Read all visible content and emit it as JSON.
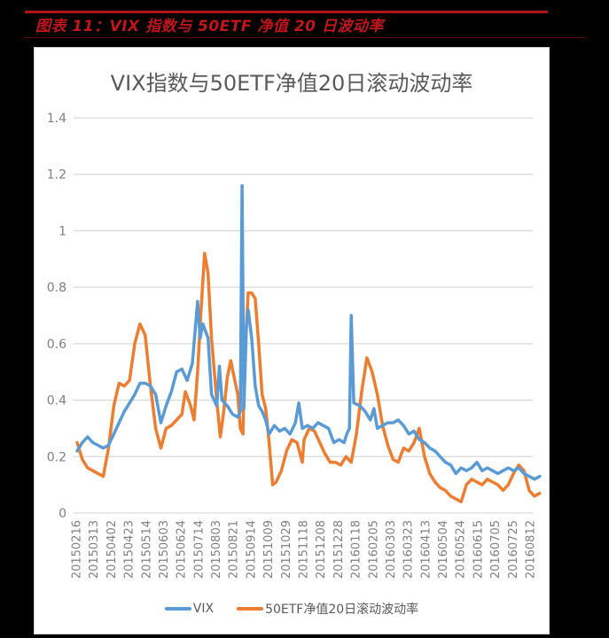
{
  "figure": {
    "caption": "图表 11：VIX 指数与 50ETF 净值 20 日波动率"
  },
  "chart_data": {
    "type": "line",
    "title": "VIX指数与50ETF净值20日滚动波动率",
    "xlabel": "",
    "ylabel": "",
    "ylim": [
      0,
      1.4
    ],
    "yticks": [
      "0",
      "0.2",
      "0.4",
      "0.6",
      "0.8",
      "1",
      "1.2",
      "1.4"
    ],
    "grid": true,
    "legend_position": "bottom",
    "x_tick_labels": [
      "20150216",
      "20150313",
      "20150402",
      "20150423",
      "20150514",
      "20150603",
      "20150624",
      "20150714",
      "20150803",
      "20150821",
      "20150914",
      "20151009",
      "20151029",
      "20151118",
      "20151208",
      "20151228",
      "20160118",
      "20160205",
      "20160303",
      "20160323",
      "20160413",
      "20160504",
      "20160524",
      "20160615",
      "20160705",
      "20160725",
      "20160812"
    ],
    "series": [
      {
        "name": "VIX",
        "color": "#5b9bd5",
        "points": [
          [
            0,
            0.22
          ],
          [
            0.3,
            0.25
          ],
          [
            0.6,
            0.27
          ],
          [
            0.9,
            0.25
          ],
          [
            1.2,
            0.24
          ],
          [
            1.5,
            0.23
          ],
          [
            1.8,
            0.24
          ],
          [
            2.1,
            0.28
          ],
          [
            2.4,
            0.32
          ],
          [
            2.7,
            0.36
          ],
          [
            3.0,
            0.39
          ],
          [
            3.3,
            0.42
          ],
          [
            3.6,
            0.46
          ],
          [
            3.9,
            0.46
          ],
          [
            4.2,
            0.45
          ],
          [
            4.5,
            0.42
          ],
          [
            4.8,
            0.32
          ],
          [
            5.1,
            0.38
          ],
          [
            5.4,
            0.43
          ],
          [
            5.7,
            0.5
          ],
          [
            6.0,
            0.51
          ],
          [
            6.3,
            0.47
          ],
          [
            6.6,
            0.53
          ],
          [
            6.9,
            0.75
          ],
          [
            7.05,
            0.62
          ],
          [
            7.2,
            0.67
          ],
          [
            7.5,
            0.62
          ],
          [
            7.7,
            0.42
          ],
          [
            8.0,
            0.38
          ],
          [
            8.15,
            0.52
          ],
          [
            8.3,
            0.4
          ],
          [
            8.6,
            0.38
          ],
          [
            8.9,
            0.35
          ],
          [
            9.2,
            0.34
          ],
          [
            9.35,
            0.36
          ],
          [
            9.45,
            1.16
          ],
          [
            9.55,
            0.37
          ],
          [
            9.7,
            0.66
          ],
          [
            9.8,
            0.72
          ],
          [
            10.0,
            0.62
          ],
          [
            10.2,
            0.45
          ],
          [
            10.4,
            0.38
          ],
          [
            10.6,
            0.36
          ],
          [
            10.8,
            0.33
          ],
          [
            11.0,
            0.28
          ],
          [
            11.3,
            0.31
          ],
          [
            11.6,
            0.29
          ],
          [
            11.9,
            0.3
          ],
          [
            12.2,
            0.28
          ],
          [
            12.5,
            0.32
          ],
          [
            12.7,
            0.39
          ],
          [
            12.9,
            0.3
          ],
          [
            13.2,
            0.31
          ],
          [
            13.5,
            0.3
          ],
          [
            13.8,
            0.32
          ],
          [
            14.1,
            0.31
          ],
          [
            14.4,
            0.3
          ],
          [
            14.7,
            0.25
          ],
          [
            15.0,
            0.26
          ],
          [
            15.3,
            0.25
          ],
          [
            15.45,
            0.28
          ],
          [
            15.6,
            0.3
          ],
          [
            15.7,
            0.7
          ],
          [
            15.85,
            0.39
          ],
          [
            16.2,
            0.38
          ],
          [
            16.5,
            0.36
          ],
          [
            16.8,
            0.33
          ],
          [
            17.0,
            0.37
          ],
          [
            17.2,
            0.3
          ],
          [
            17.5,
            0.31
          ],
          [
            17.8,
            0.32
          ],
          [
            18.1,
            0.32
          ],
          [
            18.4,
            0.33
          ],
          [
            18.7,
            0.31
          ],
          [
            19.0,
            0.28
          ],
          [
            19.3,
            0.29
          ],
          [
            19.6,
            0.26
          ],
          [
            19.9,
            0.25
          ],
          [
            20.2,
            0.23
          ],
          [
            20.5,
            0.22
          ],
          [
            20.8,
            0.2
          ],
          [
            21.1,
            0.18
          ],
          [
            21.4,
            0.17
          ],
          [
            21.7,
            0.14
          ],
          [
            22.0,
            0.16
          ],
          [
            22.3,
            0.15
          ],
          [
            22.6,
            0.16
          ],
          [
            22.9,
            0.18
          ],
          [
            23.2,
            0.15
          ],
          [
            23.5,
            0.16
          ],
          [
            23.8,
            0.15
          ],
          [
            24.1,
            0.14
          ],
          [
            24.4,
            0.15
          ],
          [
            24.7,
            0.16
          ],
          [
            25.0,
            0.15
          ],
          [
            25.3,
            0.16
          ],
          [
            25.6,
            0.14
          ],
          [
            25.9,
            0.13
          ],
          [
            26.2,
            0.12
          ],
          [
            26.5,
            0.13
          ]
        ]
      },
      {
        "name": "50ETF净值20日滚动波动率",
        "color": "#ed7d31",
        "points": [
          [
            0,
            0.25
          ],
          [
            0.3,
            0.19
          ],
          [
            0.6,
            0.16
          ],
          [
            0.9,
            0.15
          ],
          [
            1.2,
            0.14
          ],
          [
            1.5,
            0.13
          ],
          [
            1.8,
            0.23
          ],
          [
            2.1,
            0.38
          ],
          [
            2.4,
            0.46
          ],
          [
            2.7,
            0.45
          ],
          [
            3.0,
            0.47
          ],
          [
            3.3,
            0.6
          ],
          [
            3.6,
            0.67
          ],
          [
            3.9,
            0.63
          ],
          [
            4.2,
            0.45
          ],
          [
            4.5,
            0.3
          ],
          [
            4.8,
            0.23
          ],
          [
            5.1,
            0.3
          ],
          [
            5.4,
            0.31
          ],
          [
            5.7,
            0.33
          ],
          [
            6.0,
            0.35
          ],
          [
            6.2,
            0.43
          ],
          [
            6.5,
            0.38
          ],
          [
            6.7,
            0.33
          ],
          [
            6.9,
            0.5
          ],
          [
            7.1,
            0.72
          ],
          [
            7.3,
            0.92
          ],
          [
            7.5,
            0.85
          ],
          [
            7.7,
            0.62
          ],
          [
            8.0,
            0.4
          ],
          [
            8.2,
            0.27
          ],
          [
            8.4,
            0.36
          ],
          [
            8.6,
            0.48
          ],
          [
            8.8,
            0.54
          ],
          [
            9.0,
            0.48
          ],
          [
            9.2,
            0.42
          ],
          [
            9.35,
            0.3
          ],
          [
            9.5,
            0.28
          ],
          [
            9.6,
            0.55
          ],
          [
            9.8,
            0.78
          ],
          [
            10.0,
            0.78
          ],
          [
            10.2,
            0.76
          ],
          [
            10.4,
            0.6
          ],
          [
            10.6,
            0.42
          ],
          [
            10.8,
            0.37
          ],
          [
            11.0,
            0.25
          ],
          [
            11.2,
            0.1
          ],
          [
            11.4,
            0.11
          ],
          [
            11.7,
            0.15
          ],
          [
            12.0,
            0.22
          ],
          [
            12.3,
            0.26
          ],
          [
            12.6,
            0.25
          ],
          [
            12.9,
            0.18
          ],
          [
            13.0,
            0.26
          ],
          [
            13.3,
            0.3
          ],
          [
            13.6,
            0.29
          ],
          [
            13.9,
            0.25
          ],
          [
            14.2,
            0.21
          ],
          [
            14.5,
            0.18
          ],
          [
            14.8,
            0.18
          ],
          [
            15.1,
            0.17
          ],
          [
            15.4,
            0.2
          ],
          [
            15.7,
            0.18
          ],
          [
            16.0,
            0.28
          ],
          [
            16.3,
            0.43
          ],
          [
            16.6,
            0.55
          ],
          [
            16.9,
            0.5
          ],
          [
            17.2,
            0.42
          ],
          [
            17.5,
            0.31
          ],
          [
            17.8,
            0.24
          ],
          [
            18.1,
            0.19
          ],
          [
            18.4,
            0.18
          ],
          [
            18.7,
            0.23
          ],
          [
            19.0,
            0.22
          ],
          [
            19.3,
            0.25
          ],
          [
            19.6,
            0.3
          ],
          [
            19.9,
            0.2
          ],
          [
            20.2,
            0.14
          ],
          [
            20.5,
            0.11
          ],
          [
            20.8,
            0.09
          ],
          [
            21.1,
            0.08
          ],
          [
            21.4,
            0.06
          ],
          [
            21.7,
            0.05
          ],
          [
            22.0,
            0.04
          ],
          [
            22.3,
            0.1
          ],
          [
            22.6,
            0.12
          ],
          [
            22.9,
            0.11
          ],
          [
            23.2,
            0.1
          ],
          [
            23.5,
            0.12
          ],
          [
            23.8,
            0.11
          ],
          [
            24.1,
            0.1
          ],
          [
            24.4,
            0.08
          ],
          [
            24.7,
            0.1
          ],
          [
            25.0,
            0.14
          ],
          [
            25.3,
            0.17
          ],
          [
            25.6,
            0.15
          ],
          [
            25.9,
            0.08
          ],
          [
            26.2,
            0.06
          ],
          [
            26.5,
            0.07
          ]
        ]
      }
    ]
  },
  "legend": {
    "items": [
      {
        "label": "VIX",
        "color": "#5b9bd5"
      },
      {
        "label": "50ETF净值20日滚动波动率",
        "color": "#ed7d31"
      }
    ]
  }
}
